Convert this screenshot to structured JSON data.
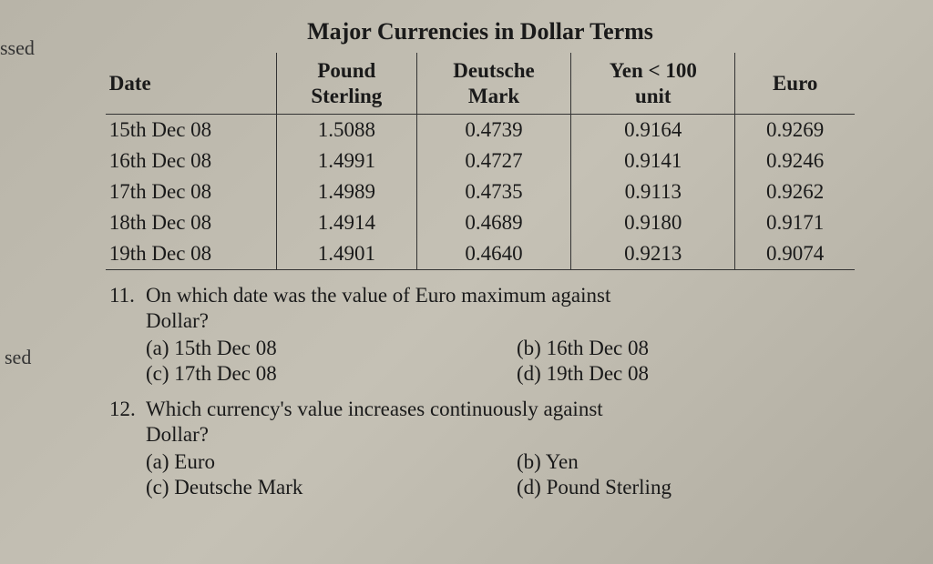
{
  "page_fragments": {
    "left_top": "ssed",
    "left_mid": "sed"
  },
  "table": {
    "title": "Major Currencies in Dollar Terms",
    "columns": [
      {
        "line1": "Date",
        "line2": ""
      },
      {
        "line1": "Pound",
        "line2": "Sterling"
      },
      {
        "line1": "Deutsche",
        "line2": "Mark"
      },
      {
        "line1": "Yen < 100",
        "line2": "unit"
      },
      {
        "line1": "Euro",
        "line2": ""
      }
    ],
    "rows": [
      [
        "15th Dec 08",
        "1.5088",
        "0.4739",
        "0.9164",
        "0.9269"
      ],
      [
        "16th Dec 08",
        "1.4991",
        "0.4727",
        "0.9141",
        "0.9246"
      ],
      [
        "17th Dec 08",
        "1.4989",
        "0.4735",
        "0.9113",
        "0.9262"
      ],
      [
        "18th Dec 08",
        "1.4914",
        "0.4689",
        "0.9180",
        "0.9171"
      ],
      [
        "19th Dec 08",
        "1.4901",
        "0.4640",
        "0.9213",
        "0.9074"
      ]
    ]
  },
  "questions": [
    {
      "number": "11.",
      "text": "On which date was the value of Euro maximum against",
      "text_line2": "Dollar?",
      "options": [
        "(a) 15th Dec 08",
        "(b) 16th Dec 08",
        "(c) 17th Dec 08",
        "(d) 19th Dec 08"
      ]
    },
    {
      "number": "12.",
      "text": "Which currency's value increases continuously against",
      "text_line2": "Dollar?",
      "options": [
        "(a) Euro",
        "(b) Yen",
        "(c) Deutsche Mark",
        "(d) Pound Sterling"
      ]
    }
  ],
  "colors": {
    "text": "#1a1a1a",
    "border": "#333333",
    "background": "#bdb9ad"
  }
}
